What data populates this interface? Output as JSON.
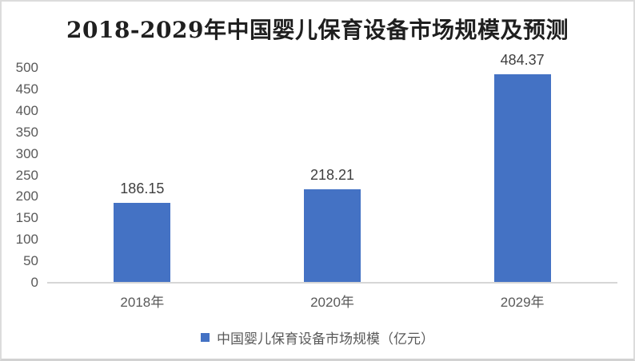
{
  "chart_data": {
    "type": "bar",
    "title": "2018-2029年中国婴儿保育设备市场规模及预测",
    "categories": [
      "2018年",
      "2020年",
      "2029年"
    ],
    "series": [
      {
        "name": "中国婴儿保育设备市场规模（亿元）",
        "values": [
          186.15,
          218.21,
          484.37
        ]
      }
    ],
    "data_labels": [
      "186.15",
      "218.21",
      "484.37"
    ],
    "legend": "中国婴儿保育设备市场规模（亿元）",
    "legend_position": "bottom",
    "xlabel": "",
    "ylabel": "",
    "ylim": [
      0,
      500
    ],
    "ytick_step": 50,
    "yticks": [
      0,
      50,
      100,
      150,
      200,
      250,
      300,
      350,
      400,
      450,
      500
    ],
    "grid": "off",
    "colors": {
      "bar": "#4472C4",
      "axis_line": "#d6d6d6",
      "tick_label": "#595959",
      "category_label": "#595959",
      "data_label": "#3f3f3f",
      "title": "#1f1f1f",
      "card_border": "#dcdcdc"
    }
  }
}
